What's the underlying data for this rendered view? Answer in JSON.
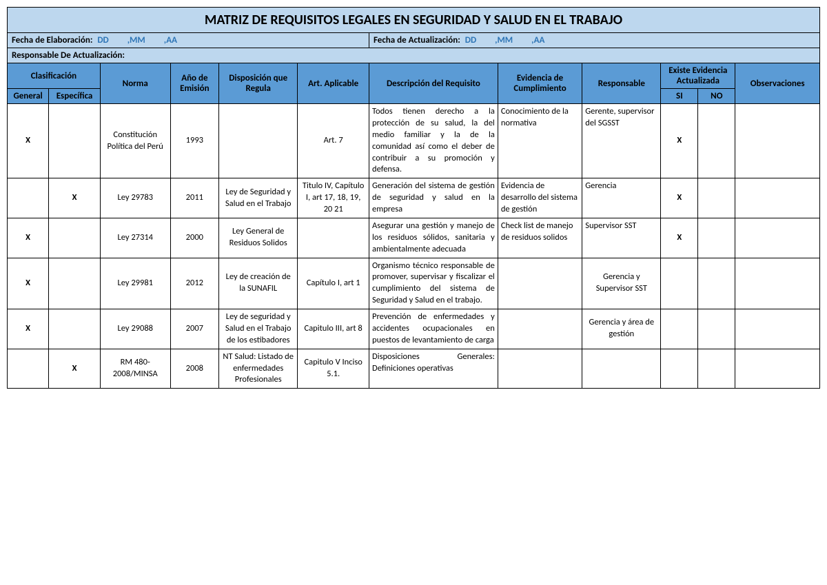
{
  "title": "MATRIZ DE REQUISITOS LEGALES EN SEGURIDAD Y SALUD EN EL TRABAJO",
  "meta": {
    "elab_label": "Fecha de Elaboración:",
    "act_label": "Fecha de Actualización:",
    "dd": "DD",
    "mm": ",MM",
    "aa": ",AA",
    "resp_label": "Responsable De Actualización:"
  },
  "headers": {
    "clasificacion": "Clasificación",
    "general": "General",
    "especifica": "Específica",
    "norma": "Norma",
    "anio": "Año de Emisión",
    "disposicion": "Disposición que Regula",
    "art": "Art. Aplicable",
    "descripcion": "Descripción del Requisito",
    "evidencia": "Evidencia de Cumplimiento",
    "responsable": "Responsable",
    "existe": "Existe Evidencia Actualizada",
    "si": "SI",
    "no": "NO",
    "obs": "Observaciones"
  },
  "rows": [
    {
      "general": "X",
      "especifica": "",
      "norma": "Constitución Política del Perú",
      "anio": "1993",
      "disposicion": "",
      "art": "Art. 7",
      "descripcion": "Todos tienen derecho a la protección de su salud, la del medio familiar y la de la comunidad así como el deber de contribuir a su promoción y defensa.",
      "evidencia": "Conocimiento de la normativa",
      "responsable": "Gerente, supervisor del SGSST",
      "si": "X",
      "no": "",
      "obs": ""
    },
    {
      "general": "",
      "especifica": "X",
      "norma": "Ley 29783",
      "anio": "2011",
      "disposicion": "Ley de Seguridad y Salud en el Trabajo",
      "art": "Titulo IV, Capítulo I, art 17, 18, 19, 20 21",
      "descripcion": "Generación del sistema de gestión de seguridad y salud en la empresa",
      "evidencia": "Evidencia de desarrollo del sistema de gestión",
      "responsable": "Gerencia",
      "si": "X",
      "no": "",
      "obs": ""
    },
    {
      "general": "X",
      "especifica": "",
      "norma": "Ley 27314",
      "anio": "2000",
      "disposicion": "Ley General de Residuos Solidos",
      "art": "",
      "descripcion": "Asegurar una gestión y manejo de los residuos sólidos, sanitaria y ambientalmente adecuada",
      "evidencia": "Check list de manejo de residuos solidos",
      "responsable": "Supervisor SST",
      "si": "X",
      "no": "",
      "obs": ""
    },
    {
      "general": "X",
      "especifica": "",
      "norma": "Ley 29981",
      "anio": "2012",
      "disposicion": "Ley de creación de la SUNAFIL",
      "art": "Capítulo I, art 1",
      "descripcion": "Organismo técnico responsable de promover, supervisar y fiscalizar el cumplimiento del sistema de Seguridad y Salud en el trabajo.",
      "evidencia": "",
      "responsable": "Gerencia y Supervisor SST",
      "si": "",
      "no": "",
      "obs": ""
    },
    {
      "general": "X",
      "especifica": "",
      "norma": "Ley 29088",
      "anio": "2007",
      "disposicion": "Ley de seguridad y Salud en el Trabajo de los estibadores",
      "art": "Capitulo III, art 8",
      "descripcion": "Prevención de enfermedades y accidentes ocupacionales en puestos de levantamiento de carga",
      "evidencia": "",
      "responsable": "Gerencia y área de gestión",
      "si": "",
      "no": "",
      "obs": ""
    },
    {
      "general": "",
      "especifica": "X",
      "norma": "RM 480-2008/MINSA",
      "anio": "2008",
      "disposicion": "NT Salud: Listado de enfermedades Profesionales",
      "art": "Capitulo V Inciso 5.1.",
      "descripcion": "Disposiciones Generales: Definiciones operativas",
      "evidencia": "",
      "responsable": "",
      "si": "",
      "no": "",
      "obs": ""
    }
  ],
  "style": {
    "title_bg": "#bdd7ee",
    "header_bg": "#5b9bd5",
    "accent_text": "#2e75b6",
    "border": "#000000"
  }
}
